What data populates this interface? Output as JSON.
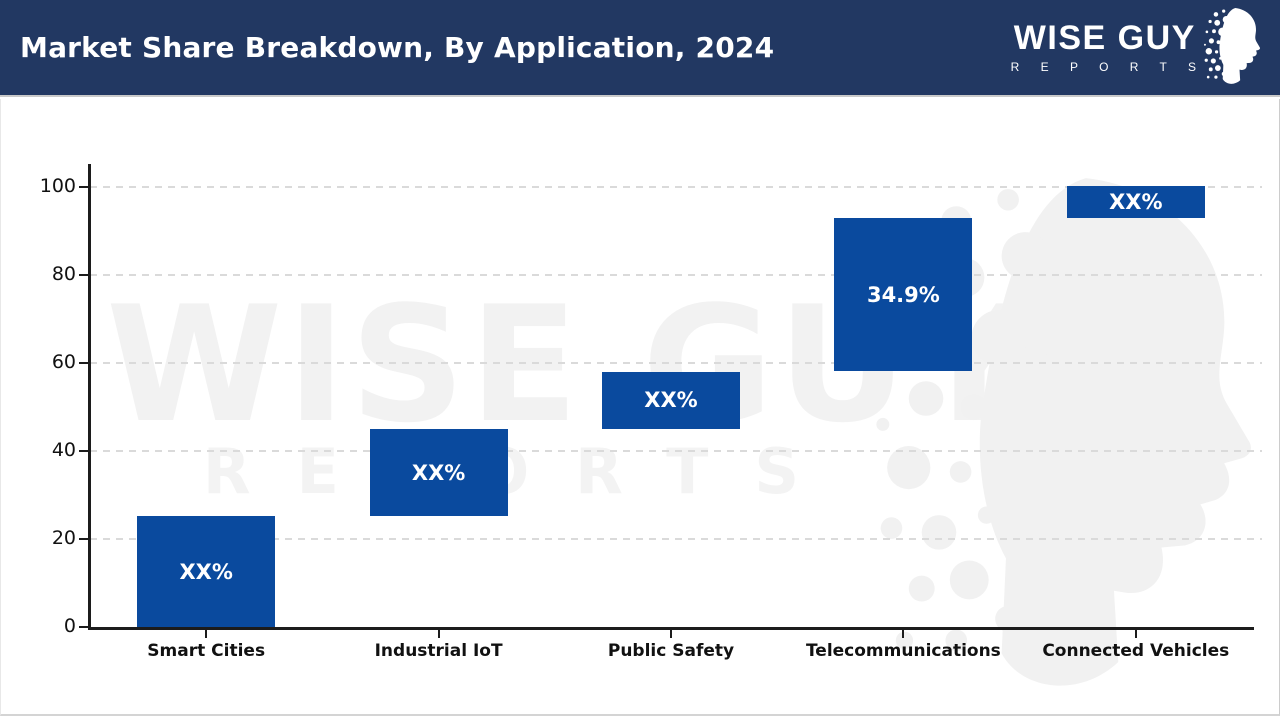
{
  "header": {
    "title": "Market Share Breakdown, By Application, 2024",
    "logo": {
      "brand_line1": "WISE GUY",
      "brand_line2": "R E P O R T S"
    }
  },
  "watermark": {
    "line1": "WISE GUY",
    "line2": "REPORTS"
  },
  "chart_data": {
    "type": "bar",
    "subtype": "floating-segment-waterfall",
    "title": "Market Share Breakdown, By Application, 2024",
    "categories": [
      "Smart Cities",
      "Industrial IoT",
      "Public Safety",
      "Telecommunications",
      "Connected Vehicles"
    ],
    "segments": [
      {
        "category": "Smart Cities",
        "start": 0,
        "end": 25.2,
        "value_label": "XX%"
      },
      {
        "category": "Industrial IoT",
        "start": 25.2,
        "end": 44.9,
        "value_label": "XX%"
      },
      {
        "category": "Public Safety",
        "start": 45.0,
        "end": 58.0,
        "value_label": "XX%"
      },
      {
        "category": "Telecommunications",
        "start": 58.1,
        "end": 93.0,
        "value_label": "34.9%"
      },
      {
        "category": "Connected Vehicles",
        "start": 93.0,
        "end": 100.2,
        "value_label": "XX%"
      }
    ],
    "xlabel": "",
    "ylabel": "",
    "ylim": [
      0,
      105
    ],
    "yticks": [
      0,
      20,
      40,
      60,
      80,
      100
    ],
    "grid": {
      "axis": "y",
      "style": "dashed",
      "color": "#dadada"
    },
    "bar_color": "#0a4a9e",
    "bar_label_color": "#ffffff",
    "axis_color": "#1c1c1c"
  },
  "colors": {
    "header_bg": "#223862",
    "header_text": "#ffffff",
    "page_bg": "#ffffff",
    "watermark": "#f2f2f2",
    "hairline": "#d4d4d4"
  }
}
